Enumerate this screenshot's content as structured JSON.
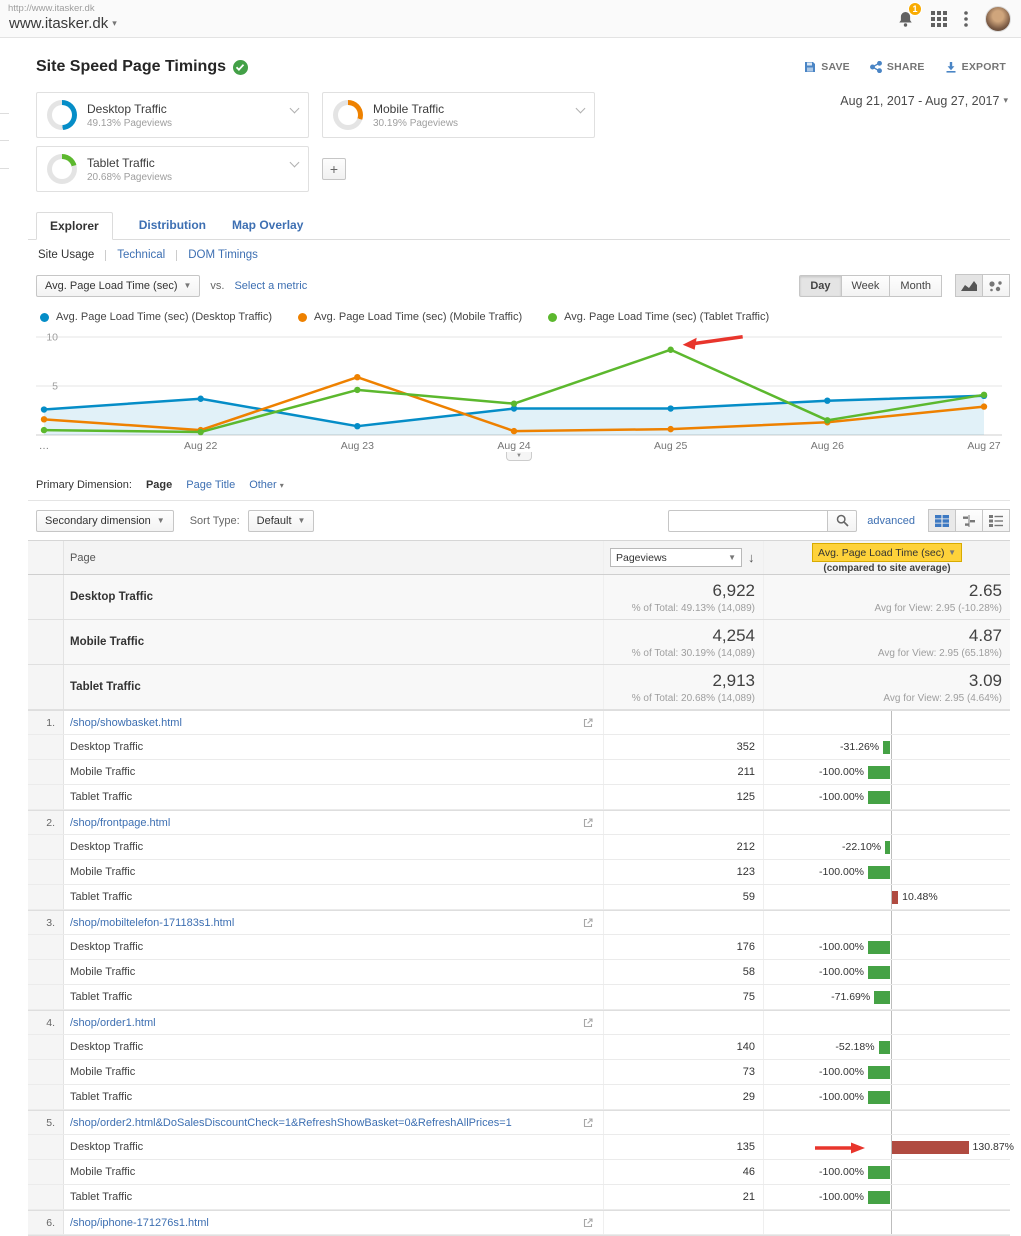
{
  "topbar": {
    "url": "http://www.itasker.dk",
    "account": "www.itasker.dk",
    "notification_count": "1"
  },
  "report": {
    "title": "Site Speed Page Timings",
    "save_label": "SAVE",
    "share_label": "SHARE",
    "export_label": "EXPORT",
    "date_range": "Aug 21, 2017 - Aug 27, 2017"
  },
  "segments": [
    {
      "name": "Desktop Traffic",
      "detail": "49.13% Pageviews",
      "pct": 49.13,
      "color": "#058dc7"
    },
    {
      "name": "Mobile Traffic",
      "detail": "30.19% Pageviews",
      "pct": 30.19,
      "color": "#ee8100"
    },
    {
      "name": "Tablet Traffic",
      "detail": "20.68% Pageviews",
      "pct": 20.68,
      "color": "#5cb82e"
    }
  ],
  "add_segment_label": "+",
  "tabs": {
    "explorer": "Explorer",
    "distribution": "Distribution",
    "map_overlay": "Map Overlay"
  },
  "subtabs": {
    "site_usage": "Site Usage",
    "technical": "Technical",
    "dom_timings": "DOM Timings"
  },
  "metric_bar": {
    "metric": "Avg. Page Load Time (sec)",
    "vs": "vs.",
    "select_metric": "Select a metric",
    "day": "Day",
    "week": "Week",
    "month": "Month"
  },
  "chart_data": {
    "type": "line",
    "x": [
      "…",
      "Aug 22",
      "Aug 23",
      "Aug 24",
      "Aug 25",
      "Aug 26",
      "Aug 27"
    ],
    "ylim": [
      0,
      10
    ],
    "yticks": [
      5,
      10
    ],
    "series": [
      {
        "name": "Avg. Page Load Time (sec) (Desktop Traffic)",
        "color": "#058dc7",
        "area": true,
        "values": [
          2.6,
          3.7,
          0.9,
          2.7,
          2.7,
          3.5,
          4.0
        ]
      },
      {
        "name": "Avg. Page Load Time (sec) (Mobile Traffic)",
        "color": "#ee8100",
        "values": [
          1.6,
          0.5,
          5.9,
          0.4,
          0.6,
          1.3,
          2.9
        ]
      },
      {
        "name": "Avg. Page Load Time (sec) (Tablet Traffic)",
        "color": "#5cb82e",
        "values": [
          0.5,
          0.3,
          4.6,
          3.2,
          8.7,
          1.5,
          4.1
        ]
      }
    ],
    "annotations": [
      {
        "type": "arrow",
        "series": 2,
        "x_index": 4
      }
    ]
  },
  "dimensions": {
    "label": "Primary Dimension:",
    "page": "Page",
    "page_title": "Page Title",
    "other": "Other"
  },
  "controls": {
    "secondary_dimension": "Secondary dimension",
    "sort_type_label": "Sort Type:",
    "sort_type_value": "Default",
    "search_value": "",
    "advanced": "advanced"
  },
  "table": {
    "headers": {
      "page": "Page",
      "pageviews": "Pageviews",
      "metric": "Avg. Page Load Time (sec)",
      "metric_sub": "(compared to site average)"
    },
    "summary": [
      {
        "name": "Desktop Traffic",
        "pageviews": "6,922",
        "pageviews_sub": "% of Total: 49.13% (14,089)",
        "value": "2.65",
        "value_sub": "Avg for View: 2.95 (-10.28%)"
      },
      {
        "name": "Mobile Traffic",
        "pageviews": "4,254",
        "pageviews_sub": "% of Total: 30.19% (14,089)",
        "value": "4.87",
        "value_sub": "Avg for View: 2.95 (65.18%)"
      },
      {
        "name": "Tablet Traffic",
        "pageviews": "2,913",
        "pageviews_sub": "% of Total: 20.68% (14,089)",
        "value": "3.09",
        "value_sub": "Avg for View: 2.95 (4.64%)"
      }
    ],
    "groups": [
      {
        "index": "1.",
        "page": "/shop/showbasket.html",
        "entries": [
          {
            "name": "Desktop Traffic",
            "pageviews": "352",
            "delta": -31.26,
            "delta_label": "-31.26%"
          },
          {
            "name": "Mobile Traffic",
            "pageviews": "211",
            "delta": -100,
            "delta_label": "-100.00%"
          },
          {
            "name": "Tablet Traffic",
            "pageviews": "125",
            "delta": -100,
            "delta_label": "-100.00%"
          }
        ]
      },
      {
        "index": "2.",
        "page": "/shop/frontpage.html",
        "entries": [
          {
            "name": "Desktop Traffic",
            "pageviews": "212",
            "delta": -22.1,
            "delta_label": "-22.10%"
          },
          {
            "name": "Mobile Traffic",
            "pageviews": "123",
            "delta": -100,
            "delta_label": "-100.00%"
          },
          {
            "name": "Tablet Traffic",
            "pageviews": "59",
            "delta": 10.48,
            "delta_label": "10.48%"
          }
        ]
      },
      {
        "index": "3.",
        "page": "/shop/mobiltelefon-171183s1.html",
        "entries": [
          {
            "name": "Desktop Traffic",
            "pageviews": "176",
            "delta": -100,
            "delta_label": "-100.00%"
          },
          {
            "name": "Mobile Traffic",
            "pageviews": "58",
            "delta": -100,
            "delta_label": "-100.00%"
          },
          {
            "name": "Tablet Traffic",
            "pageviews": "75",
            "delta": -71.69,
            "delta_label": "-71.69%"
          }
        ]
      },
      {
        "index": "4.",
        "page": "/shop/order1.html",
        "entries": [
          {
            "name": "Desktop Traffic",
            "pageviews": "140",
            "delta": -52.18,
            "delta_label": "-52.18%"
          },
          {
            "name": "Mobile Traffic",
            "pageviews": "73",
            "delta": -100,
            "delta_label": "-100.00%"
          },
          {
            "name": "Tablet Traffic",
            "pageviews": "29",
            "delta": -100,
            "delta_label": "-100.00%"
          }
        ]
      },
      {
        "index": "5.",
        "page": "/shop/order2.html&DoSalesDiscountCheck=1&RefreshShowBasket=0&RefreshAllPrices=1",
        "entries": [
          {
            "name": "Desktop Traffic",
            "pageviews": "135",
            "delta": 130.87,
            "delta_label": "130.87%",
            "arrow": true
          },
          {
            "name": "Mobile Traffic",
            "pageviews": "46",
            "delta": -100,
            "delta_label": "-100.00%"
          },
          {
            "name": "Tablet Traffic",
            "pageviews": "21",
            "delta": -100,
            "delta_label": "-100.00%"
          }
        ]
      },
      {
        "index": "6.",
        "page": "/shop/iphone-171276s1.html",
        "entries": []
      }
    ]
  }
}
